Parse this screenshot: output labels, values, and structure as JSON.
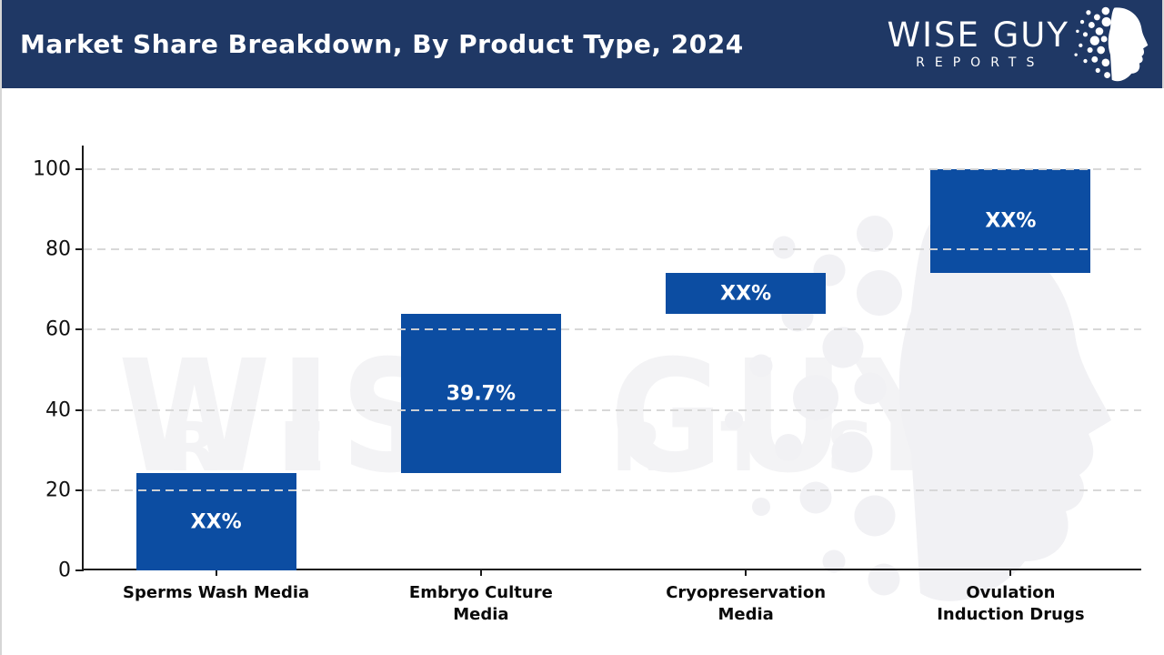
{
  "header": {
    "title": "Market Share Breakdown, By Product Type, 2024",
    "logo": {
      "name": "WISE GUY",
      "subtitle": "REPORTS"
    }
  },
  "watermark": {
    "line1": "WISE GUY",
    "line2": "REPORTS"
  },
  "chart_data": {
    "type": "bar",
    "subtype": "floating-segment (waterfall-style market share)",
    "title": "Market Share Breakdown, By Product Type, 2024",
    "categories": [
      "Sperms Wash Media",
      "Embryo Culture Media",
      "Cryopreservation Media",
      "Ovulation Induction Drugs"
    ],
    "category_lines": [
      [
        "Sperms Wash Media"
      ],
      [
        "Embryo Culture",
        "Media"
      ],
      [
        "Cryopreservation",
        "Media"
      ],
      [
        "Ovulation",
        "Induction Drugs"
      ]
    ],
    "segments": [
      {
        "category": "Sperms Wash Media",
        "start": 0,
        "end": 24.2,
        "label": "XX%"
      },
      {
        "category": "Embryo Culture Media",
        "start": 24.2,
        "end": 63.9,
        "label": "39.7%"
      },
      {
        "category": "Cryopreservation Media",
        "start": 63.9,
        "end": 74.1,
        "label": "XX%"
      },
      {
        "category": "Ovulation Induction Drugs",
        "start": 74.1,
        "end": 100,
        "label": "XX%"
      }
    ],
    "yticks": [
      0,
      20,
      40,
      60,
      80,
      100
    ],
    "ylim": [
      0,
      105.9
    ],
    "xlabel": "",
    "ylabel": "",
    "legend": "none",
    "grid": {
      "axis": "y",
      "style": "dashed",
      "color": "#d6d6d6",
      "drawn_over_bars": true
    },
    "colors": {
      "bar": "#0c4da2",
      "header_bg": "#1f3865",
      "axis": "#1a1a1a",
      "bar_label_text": "#ffffff",
      "watermark": "#f3f3f5"
    }
  }
}
